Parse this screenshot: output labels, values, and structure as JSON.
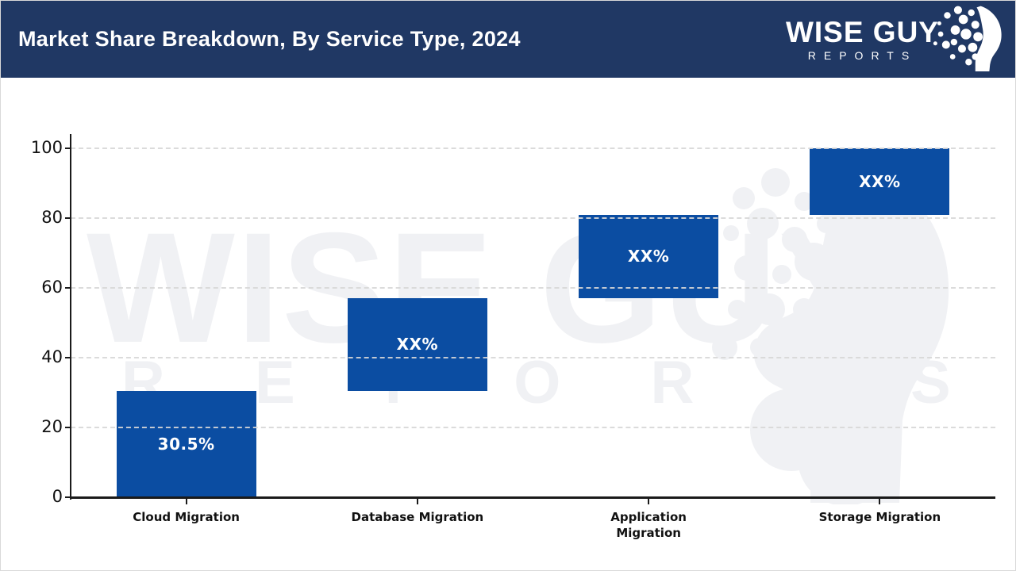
{
  "header": {
    "title": "Market Share Breakdown, By Service Type, 2024",
    "logo": {
      "name": "Wise Guy Reports",
      "line1": "WISE GUY",
      "line2": "REPORTS"
    }
  },
  "watermark": {
    "line1": "WISE GUY",
    "line2": "R E P O R T S"
  },
  "chart_data": {
    "type": "bar",
    "subtype": "floating-segment-waterfall",
    "title": "Market Share Breakdown, By Service Type, 2024",
    "categories": [
      "Cloud Migration",
      "Database Migration",
      "Application\nMigration",
      "Storage Migration"
    ],
    "series": [
      {
        "name": "Market share (%)",
        "segments": [
          {
            "category": "Cloud Migration",
            "start": 0,
            "end": 30.5,
            "label": "30.5%"
          },
          {
            "category": "Database Migration",
            "start": 30.5,
            "end": 57,
            "label": "XX%"
          },
          {
            "category": "Application Migration",
            "start": 57,
            "end": 81,
            "label": "XX%"
          },
          {
            "category": "Storage Migration",
            "start": 81,
            "end": 100,
            "label": "XX%"
          }
        ]
      }
    ],
    "ylim": [
      0,
      100
    ],
    "yticks": [
      0,
      20,
      40,
      60,
      80,
      100
    ],
    "grid": "horizontal-dashed",
    "legend": "none",
    "bar_color": "#0B4DA2",
    "axis_color": "#1a1a1a",
    "grid_color": "#d7d7d7",
    "value_label_color": "#ffffff"
  },
  "colors": {
    "header_bg": "#203864",
    "page_bg": "#ffffff",
    "watermark": "#f0f1f4"
  }
}
